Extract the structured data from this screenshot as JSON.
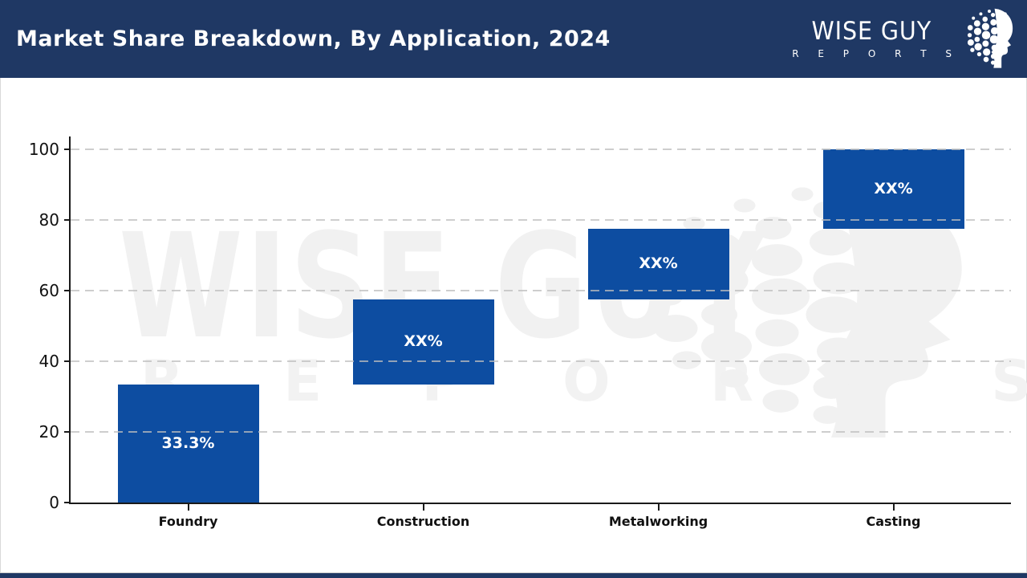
{
  "header": {
    "title": "Market Share Breakdown, By Application, 2024",
    "bg_color": "#1f3864",
    "logo": {
      "line1": "WISE GUY",
      "line2": "R E P O R T S",
      "head_icon": "dotted-head-profile"
    }
  },
  "watermark": {
    "line1": "WISE GUY",
    "line2": "R E P O R T S",
    "head_icon": "dotted-head-profile",
    "color": "#f1f1f1"
  },
  "chart_data": {
    "type": "bar",
    "subtype": "waterfall",
    "title": "Market Share Breakdown, By Application, 2024",
    "categories": [
      "Foundry",
      "Construction",
      "Metalworking",
      "Casting"
    ],
    "segments": [
      {
        "category": "Foundry",
        "start": 0,
        "end": 33.3,
        "label": "33.3%"
      },
      {
        "category": "Construction",
        "start": 33.3,
        "end": 57.5,
        "label": "XX%"
      },
      {
        "category": "Metalworking",
        "start": 57.5,
        "end": 77.5,
        "label": "XX%"
      },
      {
        "category": "Casting",
        "start": 77.5,
        "end": 100,
        "label": "XX%"
      }
    ],
    "y_ticks": [
      0,
      20,
      40,
      60,
      80,
      100
    ],
    "ylim": [
      0,
      100
    ],
    "xlabel": "",
    "ylabel": "",
    "grid": "horizontal-dashed",
    "legend": "none",
    "bar_color": "#0d4da1",
    "bar_label_color": "#ffffff",
    "axis_color": "#1a1a1a"
  },
  "footer": {
    "bg_color": "#1f3864"
  }
}
